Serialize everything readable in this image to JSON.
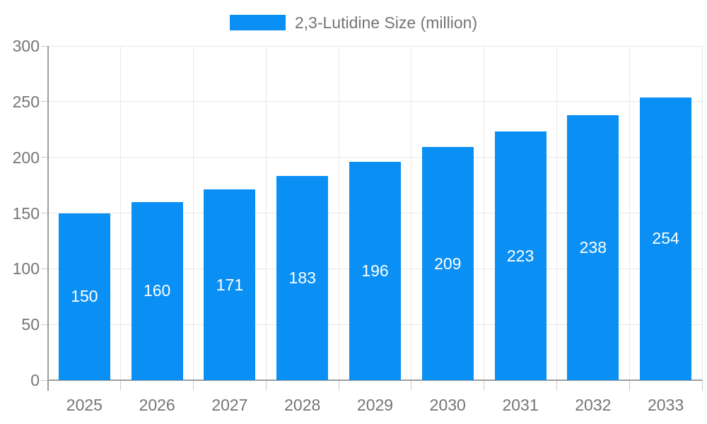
{
  "legend": {
    "label": "2,3-Lutidine Size (million)"
  },
  "colors": {
    "bar": "#0A90F5",
    "axis_text": "#757575",
    "grid": "#e7e7e7",
    "axis_line": "#9e9e9e",
    "tick": "#cccccc",
    "value_label": "#ffffff",
    "background": "#ffffff"
  },
  "chart_data": {
    "type": "bar",
    "title": "2,3-Lutidine Size (million)",
    "categories": [
      "2025",
      "2026",
      "2027",
      "2028",
      "2029",
      "2030",
      "2031",
      "2032",
      "2033"
    ],
    "values": [
      150,
      160,
      171,
      183,
      196,
      209,
      223,
      238,
      254
    ],
    "xlabel": "",
    "ylabel": "",
    "ylim": [
      0,
      300
    ],
    "yticks": [
      0,
      50,
      100,
      150,
      200,
      250,
      300
    ],
    "grid": true,
    "legend_position": "top-center",
    "value_label_position": "inside-center"
  }
}
